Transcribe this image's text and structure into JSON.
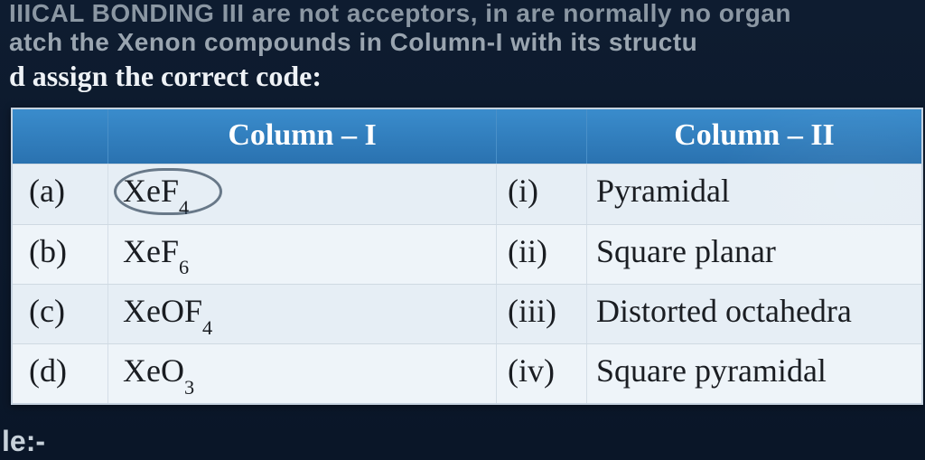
{
  "header": {
    "line1": "IIICAL BONDING III are not acceptors, in are normally no organ",
    "line2": "atch the Xenon compounds in Column-I with its structu",
    "line3": "d assign the correct code:"
  },
  "table": {
    "headers": {
      "col1": "Column – I",
      "col2": "Column – II"
    },
    "rows": [
      {
        "label": "(a)",
        "compound_html": "XeF<sub>4</sub>",
        "roman": "(i)",
        "shape": "Pyramidal",
        "circled": true
      },
      {
        "label": "(b)",
        "compound_html": "XeF<sub>6</sub>",
        "roman": "(ii)",
        "shape": "Square planar",
        "circled": false
      },
      {
        "label": "(c)",
        "compound_html": "XeOF<sub>4</sub>",
        "roman": "(iii)",
        "shape": "Distorted octahedra",
        "circled": false
      },
      {
        "label": "(d)",
        "compound_html": "XeO<sub>3</sub>",
        "roman": "(iv)",
        "shape": "Square pyramidal",
        "circled": false
      }
    ]
  },
  "footer": {
    "le": "le:-"
  },
  "style": {
    "header_bg": "#2f7fbf",
    "header_text": "#ffffff",
    "body_bg": "#0a1628",
    "table_bg": "#eef4f9",
    "cell_text": "#1a1d22",
    "title_text": "#eef2f6",
    "muted_text": "#8b97a3",
    "header_fontsize": 34,
    "cell_fontsize": 36,
    "title_fontsize": 32
  }
}
